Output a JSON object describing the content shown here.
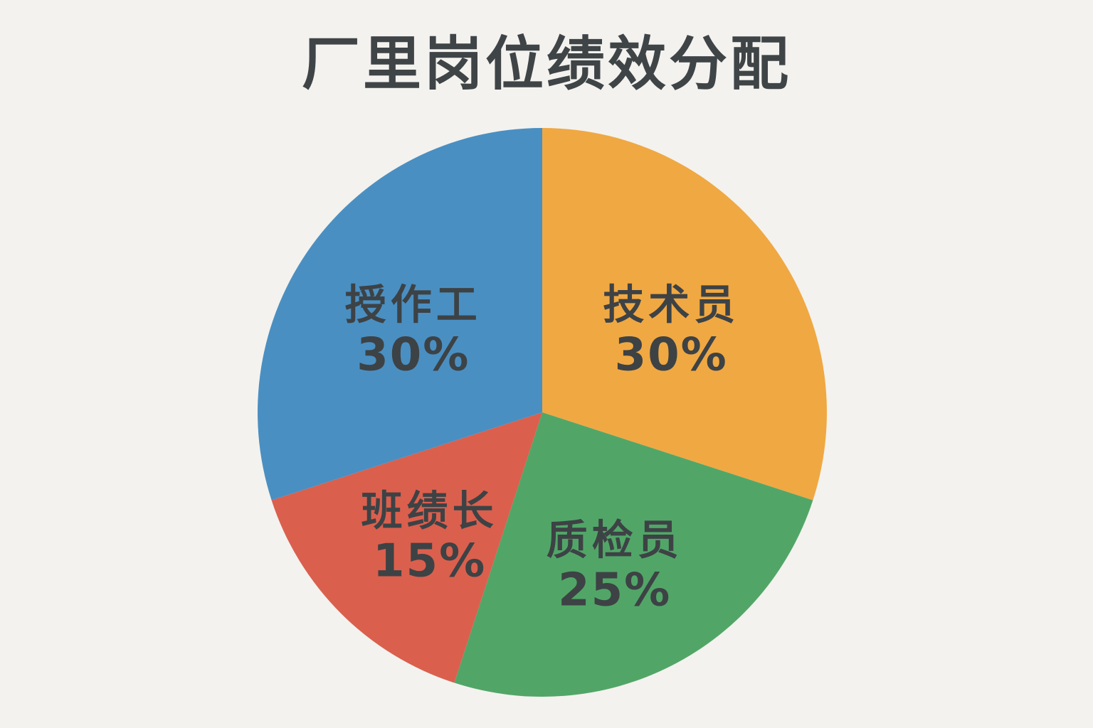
{
  "page": {
    "background_color": "#f3f2ee",
    "text_color": "#3d4245"
  },
  "chart_data": {
    "type": "pie",
    "title": "厂里岗位绩效分配",
    "legend": "none",
    "label_position": "inside-slices",
    "start_angle_deg": 0,
    "direction": "clockwise",
    "background": "#f3f2ee",
    "text_color": "#3d4245",
    "series": [
      {
        "id": "technician",
        "label": "技术员",
        "value": 30,
        "value_label": "30%",
        "color": "#f0a843"
      },
      {
        "id": "quality-inspector",
        "label": "质检员",
        "value": 25,
        "value_label": "25%",
        "color": "#51a667"
      },
      {
        "id": "team-leader",
        "label": "班绩长",
        "value": 15,
        "value_label": "15%",
        "color": "#db5f4d"
      },
      {
        "id": "operator",
        "label": "授作工",
        "value": 30,
        "value_label": "30%",
        "color": "#4a8fc2"
      }
    ]
  }
}
